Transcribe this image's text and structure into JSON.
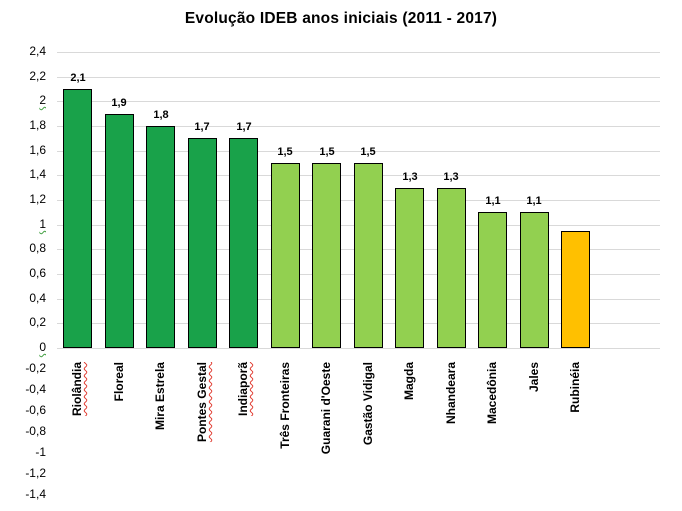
{
  "title": "Evolução IDEB anos iniciais (2011 - 2017)",
  "colors": {
    "background": "#ffffff",
    "gridline": "#d9d9d9",
    "bar_border": "#000000",
    "dark_green": "#19A24A",
    "light_green": "#92D050",
    "orange": "#FFC000",
    "spellcheck_red": "#e03a2f",
    "grammar_green": "#3f9e3f",
    "text": "#000000"
  },
  "chart_data": {
    "type": "bar",
    "title": "Evolução IDEB anos iniciais (2011 - 2017)",
    "xlabel": "",
    "ylabel": "",
    "ylim": [
      -1.4,
      2.4
    ],
    "ytick_step": 0.2,
    "grid": "horizontal gridlines, shown only from 0 to 2.4",
    "legend": "none",
    "categories": [
      "Riolândia",
      "Floreal",
      "Mira Estrela",
      "Pontes Gestal",
      "Indiaporã",
      "Três Fronteiras",
      "Guarani d'Oeste",
      "Gastão Vidigal",
      "Magda",
      "Nhandeara",
      "Macedônia",
      "Jales",
      "Rubinéia"
    ],
    "values": [
      2.1,
      1.9,
      1.8,
      1.7,
      1.7,
      1.5,
      1.5,
      1.5,
      1.3,
      1.3,
      1.1,
      1.1,
      0.95
    ],
    "bar_labels": [
      "2,1",
      "1,9",
      "1,8",
      "1,7",
      "1,7",
      "1,5",
      "1,5",
      "1,5",
      "1,3",
      "1,3",
      "1,1",
      "1,1",
      ""
    ],
    "bar_colors": [
      "#19A24A",
      "#19A24A",
      "#19A24A",
      "#19A24A",
      "#19A24A",
      "#92D050",
      "#92D050",
      "#92D050",
      "#92D050",
      "#92D050",
      "#92D050",
      "#92D050",
      "#FFC000"
    ],
    "y_ticks": [
      "2,4",
      "2,2",
      "2",
      "1,8",
      "1,6",
      "1,4",
      "1,2",
      "1",
      "0,8",
      "0,6",
      "0,4",
      "0,2",
      "0",
      "-0,2",
      "-0,4",
      "-0,6",
      "-0,8",
      "-1",
      "-1,2",
      "-1,4"
    ],
    "misspelled_categories": [
      "Riolândia",
      "Pontes Gestal",
      "Indiaporã"
    ],
    "grammar_flagged_ticks": [
      "2",
      "1",
      "0"
    ],
    "category_label_rotation_deg": 90
  }
}
